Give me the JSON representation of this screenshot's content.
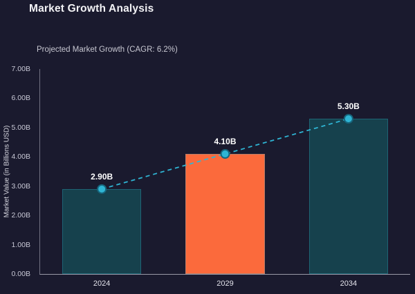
{
  "header": {
    "title": "Market Growth Analysis",
    "subtitle": "Projected Market Growth (CAGR: 6.2%)"
  },
  "chart_data": {
    "type": "bar",
    "title": "Market Growth Analysis",
    "subtitle": "Projected Market Growth (CAGR: 6.2%)",
    "categories": [
      "2024",
      "2029",
      "2034"
    ],
    "values": [
      2.9,
      4.1,
      5.3
    ],
    "bar_labels": [
      "2.90B",
      "4.10B",
      "5.30B"
    ],
    "xlabel": "",
    "ylabel": "Market Value (in Billions USD)",
    "ylim": [
      0,
      7
    ],
    "yticks": [
      0,
      1,
      2,
      3,
      4,
      5,
      6,
      7
    ],
    "ytick_labels": [
      "0.00B",
      "1.00B",
      "2.00B",
      "3.00B",
      "4.00B",
      "5.00B",
      "6.00B",
      "7.00B"
    ],
    "grid": false,
    "legend": "none",
    "bar_colors": [
      "#16414d",
      "#fb6a3c",
      "#16414d"
    ],
    "bar_border_color": "#2fa8c4",
    "trend_line": {
      "color": "#2fb5d4",
      "style": "dashed"
    },
    "marker": {
      "fill": "#2fb5d4",
      "stroke": "#17657c",
      "radius": 6
    }
  },
  "colors": {
    "background": "#1a1a2e",
    "title_text": "#f2f2f5",
    "subtitle_text": "#c8c8d2",
    "tick_text": "#c9c9d6",
    "axis_line": "#9a9aa8"
  }
}
